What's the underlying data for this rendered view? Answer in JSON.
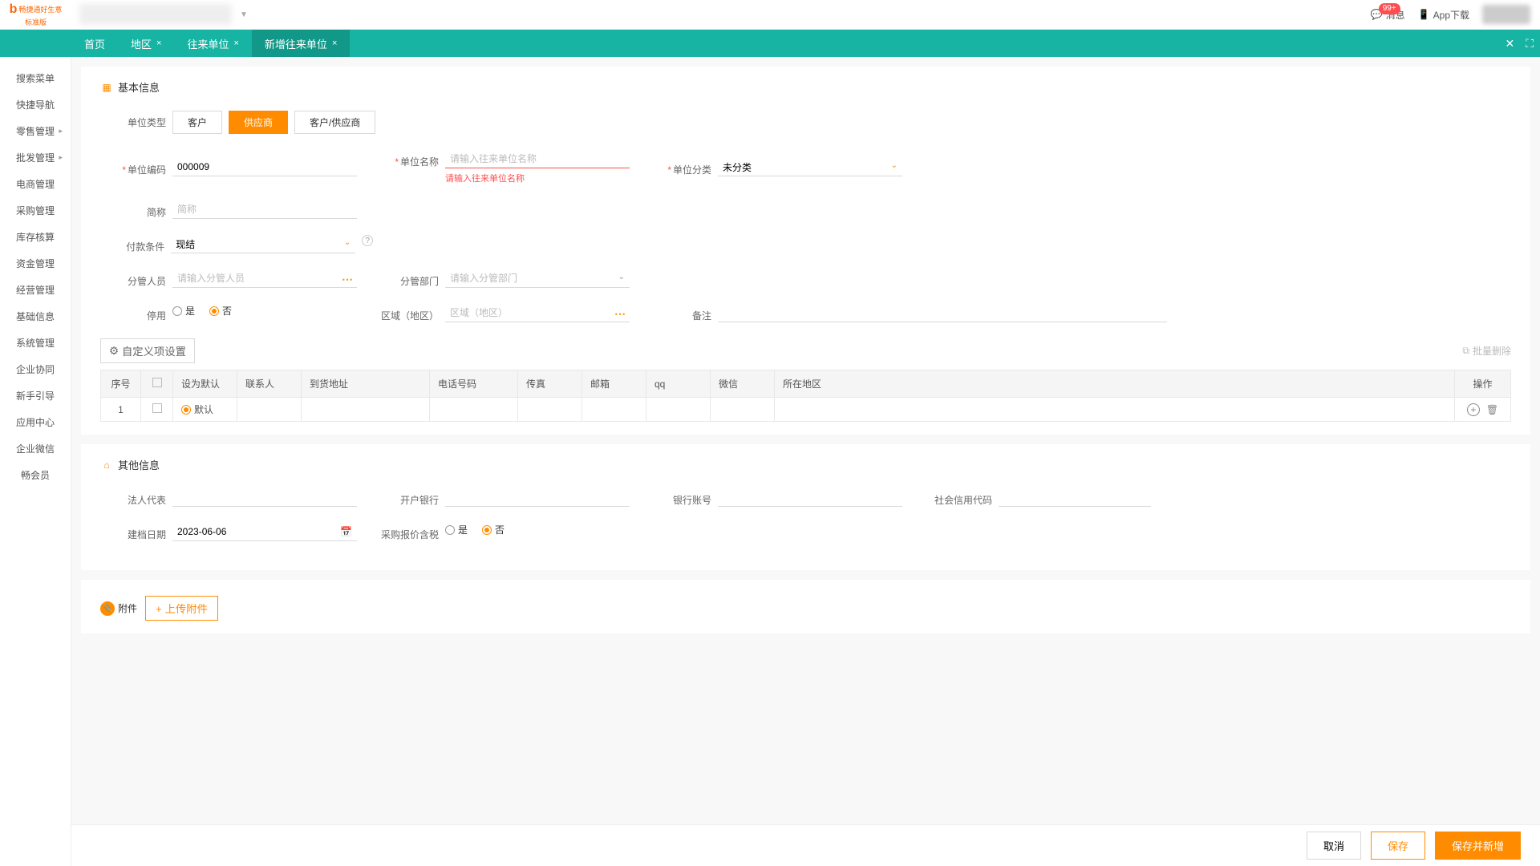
{
  "header": {
    "logo_brand": "畅捷通好生意",
    "logo_edition": "标准版",
    "msg_badge": "99+",
    "msg_label": "消息",
    "download_label": "App下载"
  },
  "tabs": {
    "items": [
      {
        "label": "首页",
        "closable": false,
        "active": false
      },
      {
        "label": "地区",
        "closable": true,
        "active": false
      },
      {
        "label": "往来单位",
        "closable": true,
        "active": false
      },
      {
        "label": "新增往来单位",
        "closable": true,
        "active": true
      }
    ]
  },
  "sidebar": {
    "items": [
      {
        "label": "搜索菜单",
        "caret": false
      },
      {
        "label": "快捷导航",
        "caret": false
      },
      {
        "label": "零售管理",
        "caret": true
      },
      {
        "label": "批发管理",
        "caret": true
      },
      {
        "label": "电商管理",
        "caret": false
      },
      {
        "label": "采购管理",
        "caret": false
      },
      {
        "label": "库存核算",
        "caret": false
      },
      {
        "label": "资金管理",
        "caret": false
      },
      {
        "label": "经营管理",
        "caret": false
      },
      {
        "label": "基础信息",
        "caret": false
      },
      {
        "label": "系统管理",
        "caret": false
      },
      {
        "label": "企业协同",
        "caret": false
      },
      {
        "label": "新手引导",
        "caret": false
      },
      {
        "label": "应用中心",
        "caret": false
      },
      {
        "label": "企业微信",
        "caret": false
      },
      {
        "label": "畅会员",
        "caret": false
      }
    ]
  },
  "basic": {
    "section_title": "基本信息",
    "unit_type_label": "单位类型",
    "type_options": [
      "客户",
      "供应商",
      "客户/供应商"
    ],
    "type_selected_index": 1,
    "unit_code_label": "单位编码",
    "unit_code_value": "000009",
    "unit_name_label": "单位名称",
    "unit_name_placeholder": "请输入往来单位名称",
    "unit_name_error": "请输入往来单位名称",
    "unit_category_label": "单位分类",
    "unit_category_value": "未分类",
    "short_name_label": "简称",
    "short_name_placeholder": "简称",
    "pay_terms_label": "付款条件",
    "pay_terms_value": "现结",
    "manager_label": "分管人员",
    "manager_placeholder": "请输入分管人员",
    "dept_label": "分管部门",
    "dept_placeholder": "请输入分管部门",
    "disabled_label": "停用",
    "yes_label": "是",
    "no_label": "否",
    "region_label": "区域（地区）",
    "region_placeholder": "区域（地区）",
    "remark_label": "备注",
    "custom_btn": "自定义项设置",
    "batch_delete": "批量删除",
    "table": {
      "headers": [
        "序号",
        "",
        "设为默认",
        "联系人",
        "到货地址",
        "电话号码",
        "传真",
        "邮箱",
        "qq",
        "微信",
        "所在地区",
        "操作"
      ],
      "row": {
        "seq": "1",
        "default_label": "默认"
      }
    }
  },
  "other": {
    "section_title": "其他信息",
    "legal_label": "法人代表",
    "bank_label": "开户银行",
    "account_label": "银行账号",
    "credit_code_label": "社会信用代码",
    "create_date_label": "建档日期",
    "create_date_value": "2023-06-06",
    "tax_label": "采购报价含税",
    "yes_label": "是",
    "no_label": "否"
  },
  "attachment": {
    "label": "附件",
    "upload_btn": "+ 上传附件"
  },
  "footer": {
    "cancel": "取消",
    "save": "保存",
    "save_new": "保存并新增"
  },
  "colors": {
    "primary_teal": "#17b3a3",
    "primary_orange": "#ff8c00",
    "error": "#ff4d4f"
  }
}
